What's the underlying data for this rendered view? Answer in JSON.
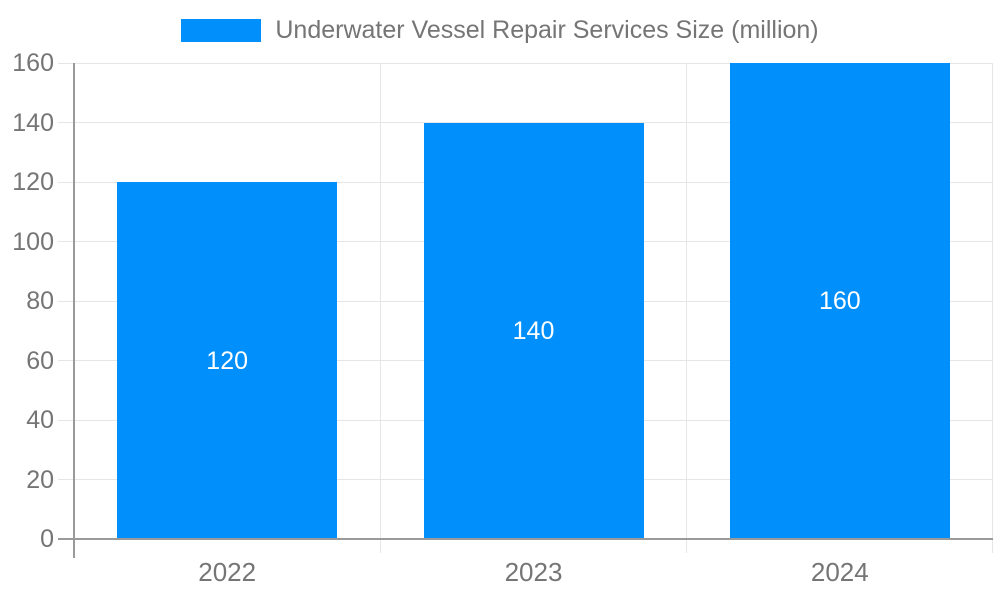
{
  "chart_data": {
    "type": "bar",
    "title": "Underwater Vessel Repair Services Size (million)",
    "legend": {
      "label": "Underwater Vessel Repair Services Size (million)",
      "position": "top"
    },
    "categories": [
      "2022",
      "2023",
      "2024"
    ],
    "series": [
      {
        "name": "Underwater Vessel Repair Services Size (million)",
        "values": [
          120,
          140,
          160
        ]
      }
    ],
    "values": [
      120,
      140,
      160
    ],
    "bar_value_labels": [
      "120",
      "140",
      "160"
    ],
    "xlabel": "",
    "ylabel": "",
    "ylim": [
      0,
      160
    ],
    "yticks": [
      0,
      20,
      40,
      60,
      80,
      100,
      120,
      140,
      160
    ],
    "ytick_labels": [
      "0",
      "20",
      "40",
      "60",
      "80",
      "100",
      "120",
      "140",
      "160"
    ],
    "grid": true,
    "colors": {
      "bar": "#008FFB",
      "value_label": "#ffffff",
      "tick_label": "#757575",
      "axis_line": "#9a9a9a",
      "gridline": "#e6e6e6"
    }
  }
}
